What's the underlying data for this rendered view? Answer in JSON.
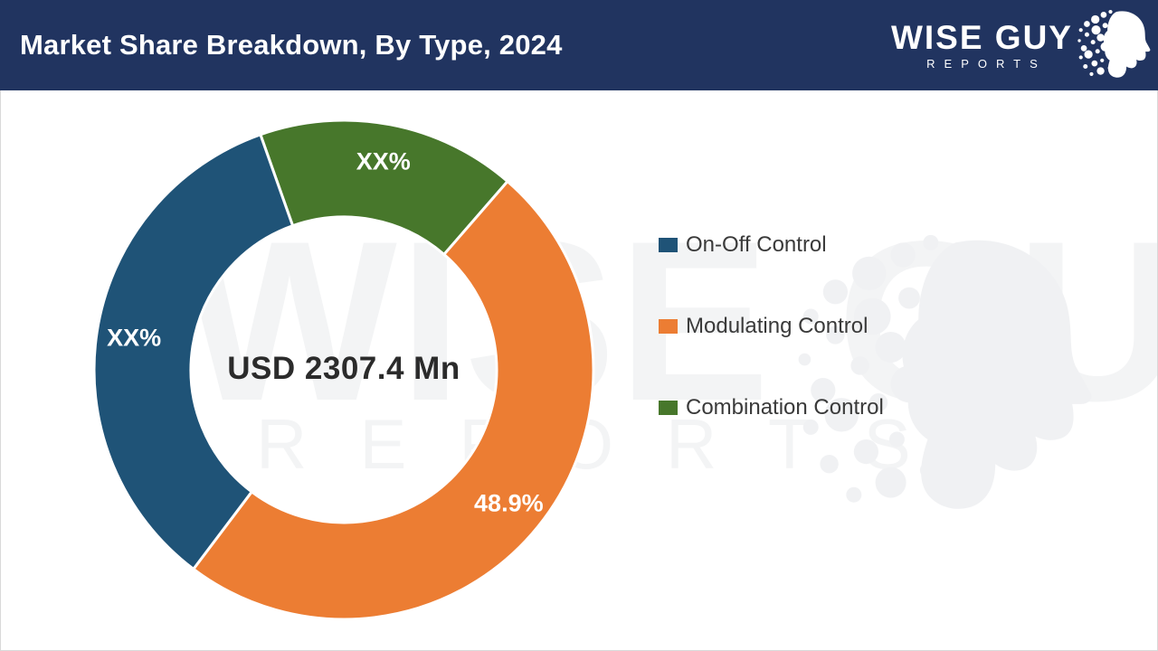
{
  "header": {
    "title": "Market Share Breakdown, By Type, 2024",
    "background_color": "#213460",
    "logo": {
      "line1": "WISE GUY",
      "line2": "REPORTS"
    }
  },
  "watermark": {
    "line1": "WISE GUY",
    "line2": "REPORTS"
  },
  "chart_data": {
    "type": "pie",
    "subtype": "donut",
    "title": "Market Share Breakdown, By Type, 2024",
    "center_label": "USD 2307.4 Mn",
    "legend_position": "right",
    "start_angle_deg_clockwise_from_top": -19.5,
    "draw_order": [
      2,
      1,
      0
    ],
    "slices": [
      {
        "name": "On-Off Control",
        "value_pct": 34.3,
        "display_label": "XX%",
        "color": "#1F5377"
      },
      {
        "name": "Modulating Control",
        "value_pct": 48.9,
        "display_label": "48.9%",
        "color": "#EC7D33"
      },
      {
        "name": "Combination Control",
        "value_pct": 16.8,
        "display_label": "XX%",
        "color": "#47772B"
      }
    ]
  }
}
